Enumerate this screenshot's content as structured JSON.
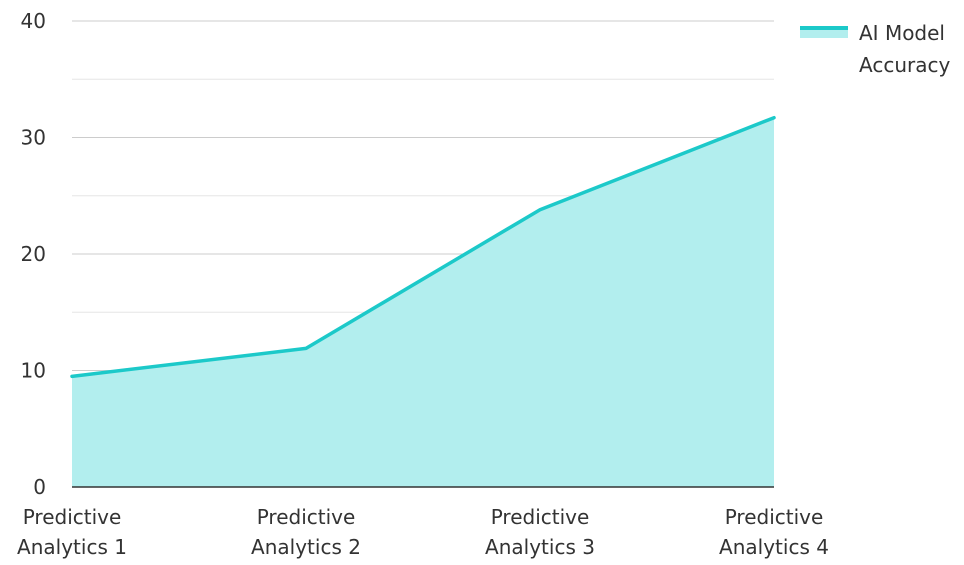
{
  "chart_data": {
    "type": "area",
    "categories": [
      "Predictive Analytics 1",
      "Predictive Analytics 2",
      "Predictive Analytics 3",
      "Predictive Analytics 4"
    ],
    "series": [
      {
        "name": "AI Model Accuracy",
        "values": [
          9.5,
          11.9,
          23.8,
          31.7
        ]
      }
    ],
    "title": "",
    "xlabel": "",
    "ylabel": "",
    "ylim": [
      0,
      40
    ],
    "yticks": [
      0,
      10,
      20,
      30,
      40
    ],
    "grid": true,
    "legend": "top-right",
    "colors": {
      "line": "#1cc9c9",
      "fill": "#b2eeee",
      "grid_major": "#cccccc",
      "grid_minor": "#e6e6e6",
      "axis": "#333333"
    }
  }
}
